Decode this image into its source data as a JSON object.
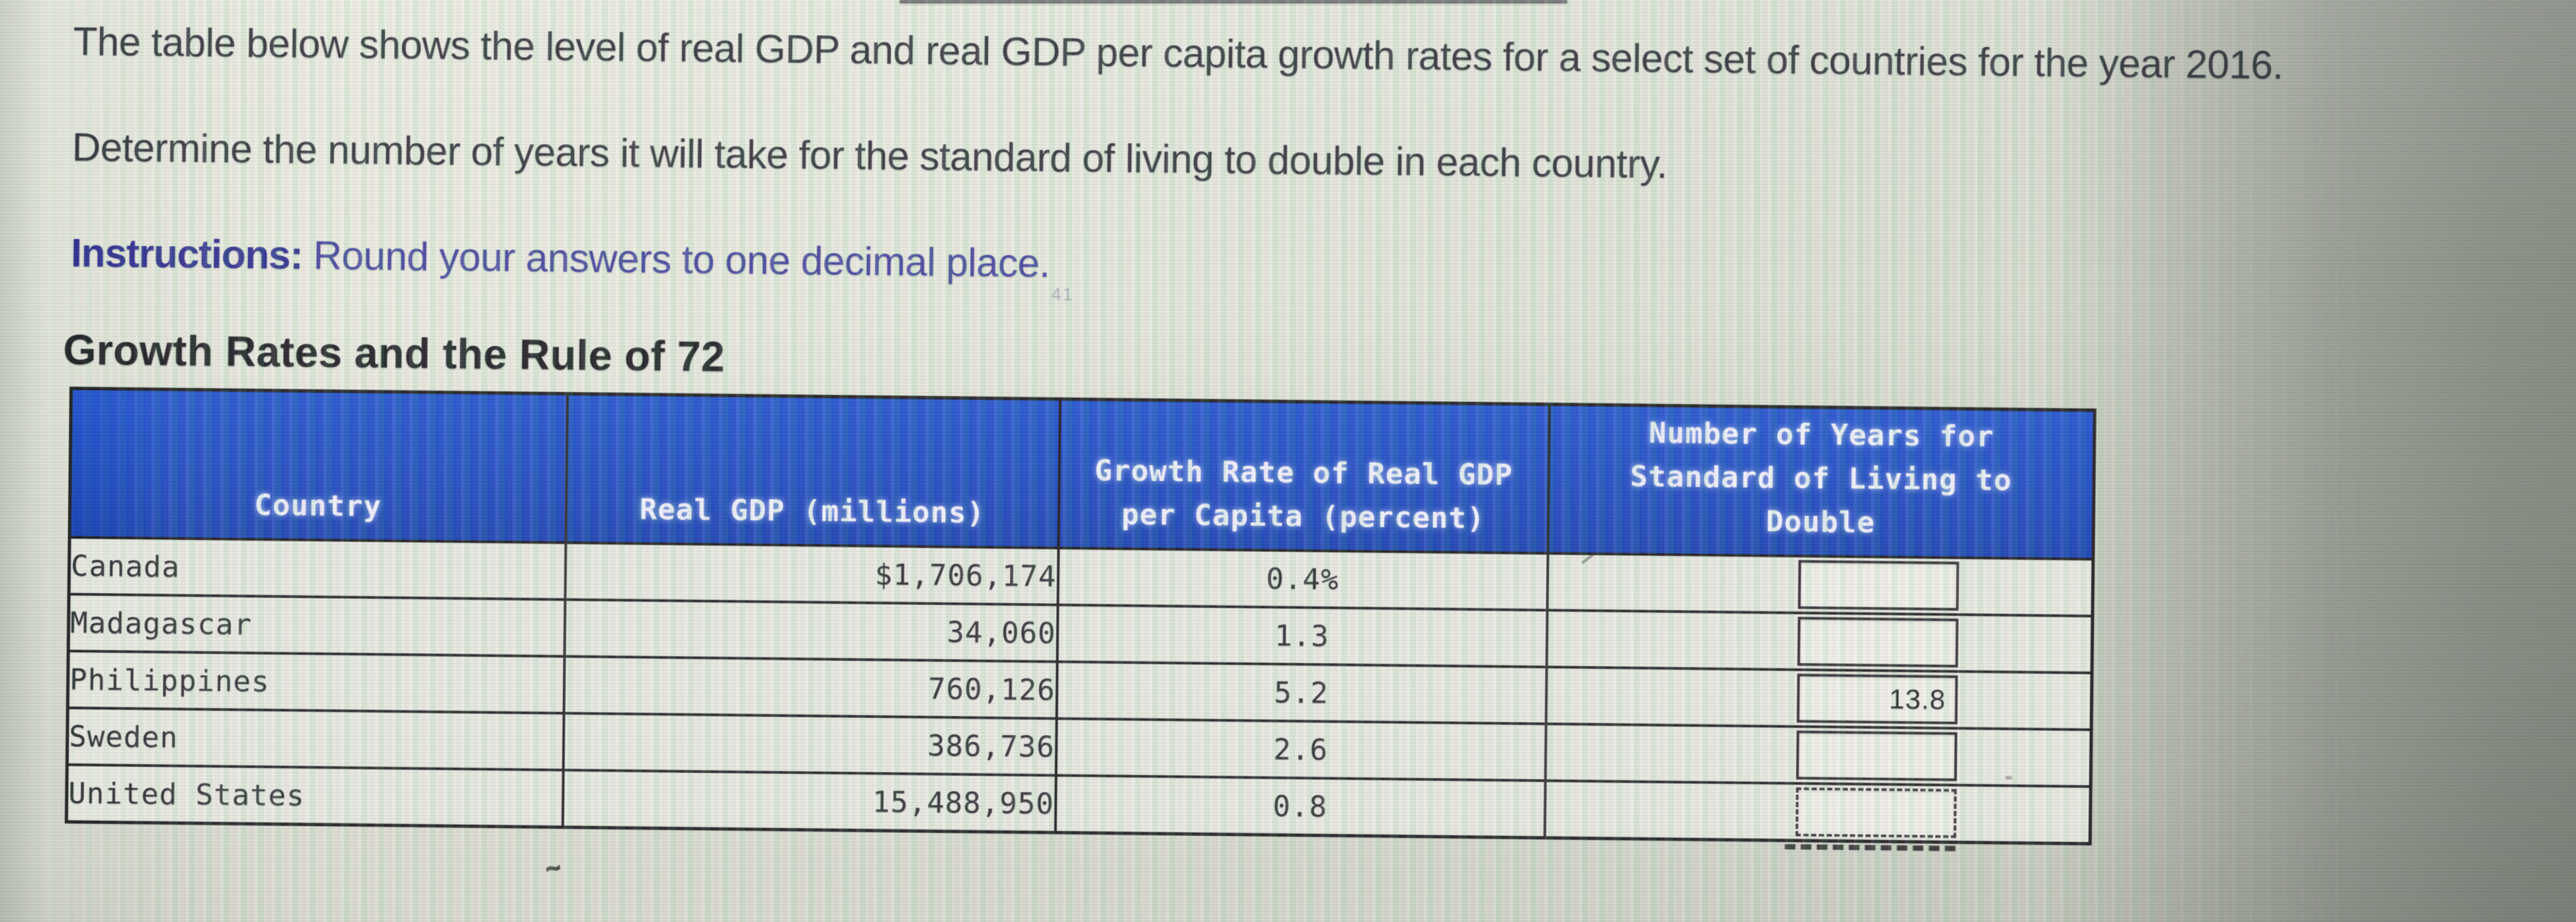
{
  "intro": {
    "line1": "The table below shows the level of real GDP and real GDP per capita growth rates for a select set of countries for the year 2016.",
    "line2": "Determine the number of years it will take for the standard of living to double in each country.",
    "instructions_label": "Instructions:",
    "instructions_text": "Round your answers to one decimal place."
  },
  "table": {
    "title": "Growth Rates and the Rule of 72",
    "columns": [
      "Country",
      "Real GDP (millions)",
      "Growth Rate of Real GDP per Capita (percent)",
      "Number of Years for Standard of Living to Double"
    ],
    "rows": [
      {
        "country": "Canada",
        "real_gdp": "$1,706,174",
        "growth_rate": "0.4%",
        "years_to_double": ""
      },
      {
        "country": "Madagascar",
        "real_gdp": "34,060",
        "growth_rate": "1.3",
        "years_to_double": ""
      },
      {
        "country": "Philippines",
        "real_gdp": "760,126",
        "growth_rate": "5.2",
        "years_to_double": "13.8"
      },
      {
        "country": "Sweden",
        "real_gdp": "386,736",
        "growth_rate": "2.6",
        "years_to_double": ""
      },
      {
        "country": "United States",
        "real_gdp": "15,488,950",
        "growth_rate": "0.8",
        "years_to_double": ""
      }
    ]
  },
  "artifacts": {
    "smudge_text": "41",
    "squiggle_text": "~"
  },
  "colors": {
    "header_blue": "#1a4cc9",
    "table_border": "#1a1a1c",
    "instructions_label_blue": "#2a2d91",
    "instructions_text_blue": "#41459f",
    "body_text": "#30343a",
    "mono_text": "#2b2d31",
    "row_background": "#e6e9e0",
    "input_background": "#eef0e8"
  }
}
